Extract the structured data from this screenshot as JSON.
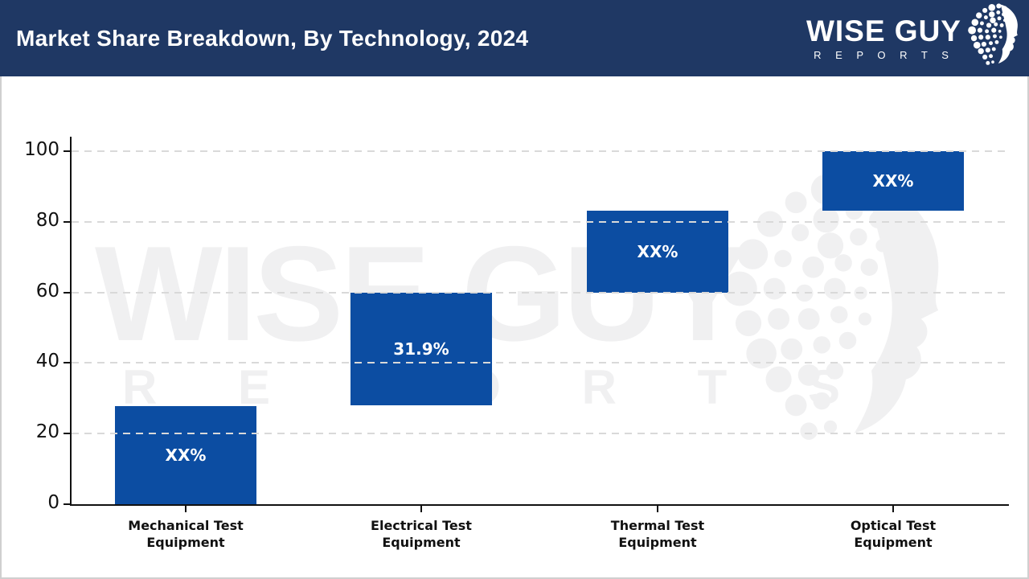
{
  "header": {
    "title": "Market Share Breakdown, By Technology, 2024",
    "bg_color": "#1f3864",
    "brand": {
      "name": "WISE GUY",
      "sub": "R E P O R T S"
    }
  },
  "watermark": {
    "line1": "WISE GUY",
    "line2": "R E P O R T S",
    "color": "#f0f0f1"
  },
  "chart_data": {
    "type": "bar",
    "subtype": "waterfall",
    "title": "Market Share Breakdown, By Technology, 2024",
    "categories": [
      [
        "Mechanical Test",
        "Equipment"
      ],
      [
        "Electrical Test",
        "Equipment"
      ],
      [
        "Thermal Test",
        "Equipment"
      ],
      [
        "Optical Test",
        "Equipment"
      ]
    ],
    "segments": [
      {
        "start": 0,
        "value": 27.9,
        "label": "XX%"
      },
      {
        "start": 27.9,
        "value": 31.9,
        "label": "31.9%"
      },
      {
        "start": 59.8,
        "value": 23.3,
        "label": "XX%"
      },
      {
        "start": 83.1,
        "value": 16.9,
        "label": "XX%"
      }
    ],
    "ylim": [
      0,
      100
    ],
    "yticks": [
      0,
      20,
      40,
      60,
      80,
      100
    ],
    "xlabel": "",
    "ylabel": "",
    "bar_color": "#0c4da2",
    "bar_label_color": "#ffffff",
    "axis_color": "#111111",
    "grid": {
      "show": true,
      "style": "dashed",
      "color": "#d9d9d9"
    },
    "legend": false
  }
}
